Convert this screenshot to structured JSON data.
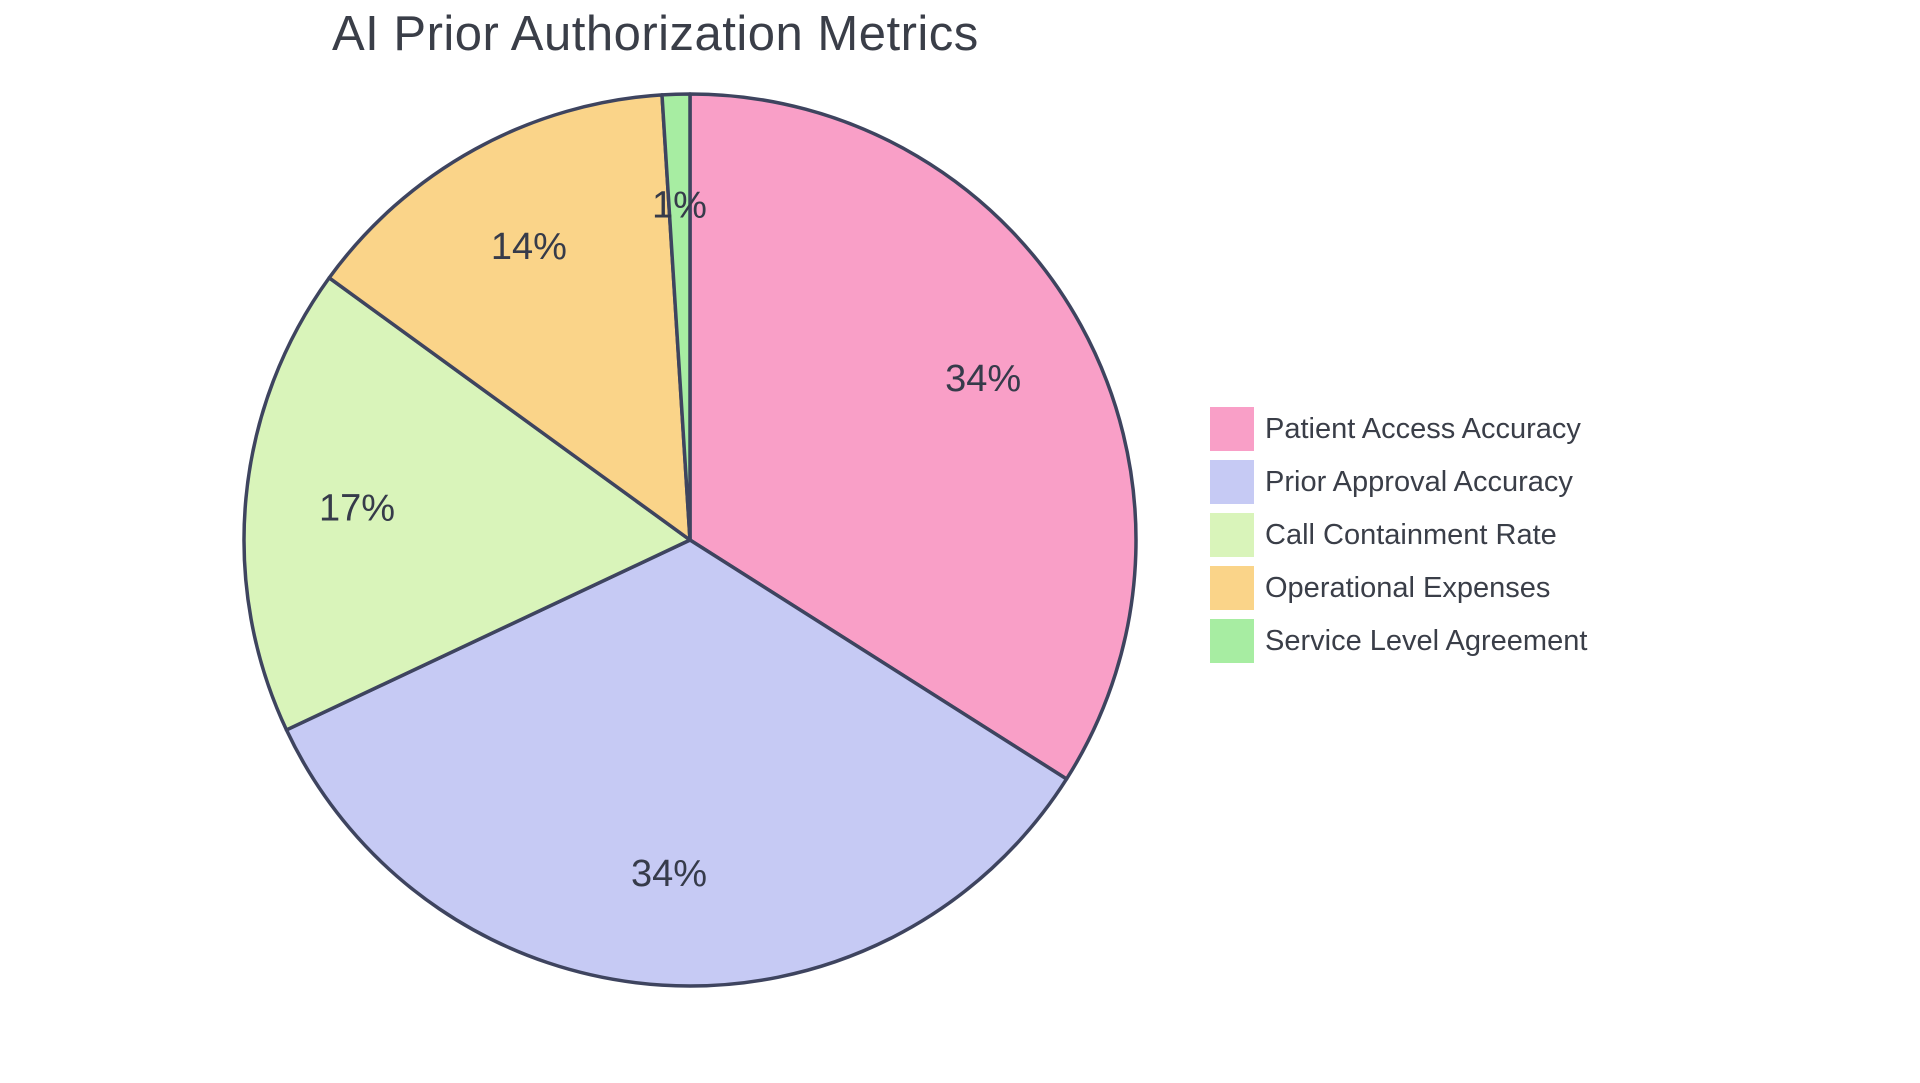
{
  "page": {
    "background_color": "#FFFFFF"
  },
  "chart_data": {
    "type": "pie",
    "title": "AI Prior Authorization Metrics",
    "direction": "clockwise",
    "start_angle_deg": 0,
    "legend_position": "right",
    "labels_shown": "percent",
    "slices": [
      {
        "label": "Patient Access Accuracy",
        "value": 34,
        "percent_label": "34%",
        "color": "#F99FC7"
      },
      {
        "label": "Prior Approval Accuracy",
        "value": 34,
        "percent_label": "34%",
        "color": "#C6CAF4"
      },
      {
        "label": "Call Containment Rate",
        "value": 17,
        "percent_label": "17%",
        "color": "#D9F4BA"
      },
      {
        "label": "Operational Expenses",
        "value": 14,
        "percent_label": "14%",
        "color": "#FAD489"
      },
      {
        "label": "Service Level Agreement",
        "value": 1,
        "percent_label": "1%",
        "color": "#A7EDA2"
      }
    ],
    "style": {
      "slice_border_color": "#3E445F",
      "percent_label_color": "#363B4A",
      "title_color": "#3A3E48",
      "legend_text_color": "#3A3E48"
    }
  }
}
